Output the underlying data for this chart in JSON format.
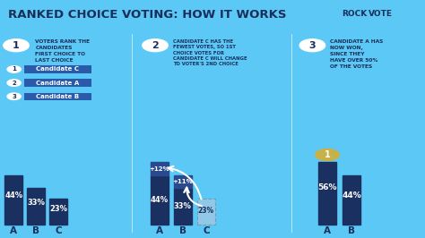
{
  "title": "RANKED CHOICE VOTING: HOW IT WORKS",
  "bg_color": "#5bc8f5",
  "bar_dark": "#1a3060",
  "bar_light": "#b0c8e0",
  "bar_accent": "#2a4a8f",
  "text_dark": "#1a2e5a",
  "round1": {
    "num": 1,
    "desc_lines": [
      "VOTERS RANK THE",
      "CANDIDATES",
      "FIRST CHOICE TO",
      "LAST CHOICE"
    ],
    "candidates": [
      "Candidate C",
      "Candidate A",
      "Candidate B"
    ],
    "bars": [
      {
        "cat": "A",
        "val": 44
      },
      {
        "cat": "B",
        "val": 33
      },
      {
        "cat": "C",
        "val": 23
      }
    ]
  },
  "round2": {
    "num": 2,
    "desc_lines": [
      "CANDIDATE C HAS THE",
      "FEWEST VOTES, SO 1ST",
      "CHOICE VOTES FOR",
      "CANDIDATE C WILL CHANGE",
      "TO VOTER'S 2ND CHOICE"
    ],
    "bars": [
      {
        "cat": "A",
        "val": 44,
        "plus": "+12%",
        "dashed": false
      },
      {
        "cat": "B",
        "val": 33,
        "plus": "+11%",
        "dashed": false
      },
      {
        "cat": "C",
        "val": 23,
        "dashed": true
      }
    ]
  },
  "round3": {
    "num": 3,
    "desc_lines": [
      "CANDIDATE A HAS",
      "NOW WON,",
      "SINCE THEY",
      "HAVE OVER 50%",
      "OF THE VOTES"
    ],
    "bars": [
      {
        "cat": "A",
        "val": 56,
        "winner": true
      },
      {
        "cat": "B",
        "val": 44,
        "winner": false
      }
    ]
  }
}
